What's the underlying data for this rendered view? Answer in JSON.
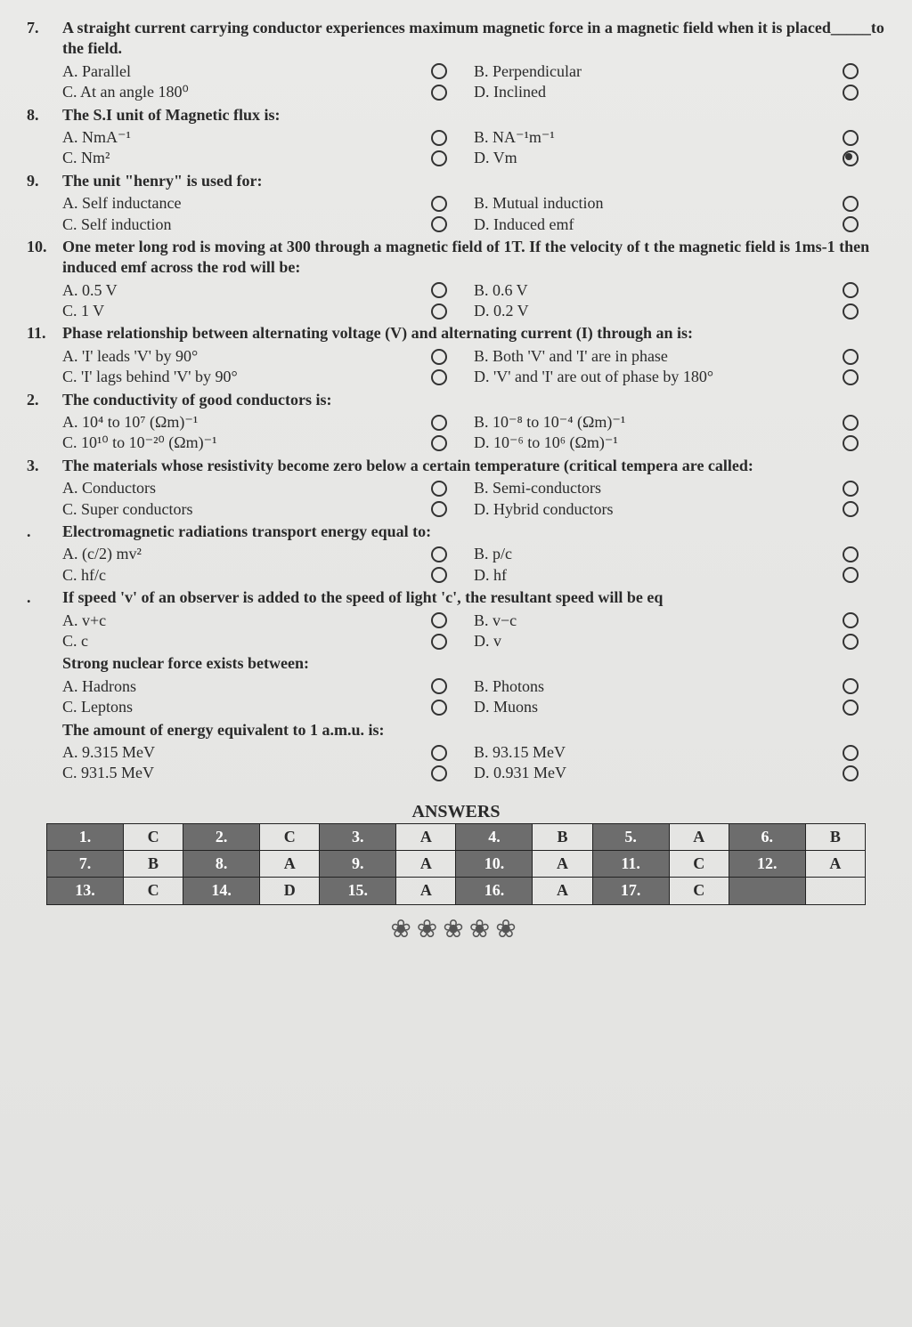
{
  "questions": [
    {
      "num": "7.",
      "stem": "A straight current carrying conductor experiences maximum magnetic force in a magnetic field when it is placed_____to the field.",
      "opts": [
        {
          "label": "A. Parallel",
          "filled": false
        },
        {
          "label": "B. Perpendicular",
          "filled": false
        },
        {
          "label": "C. At an angle 180⁰",
          "filled": false
        },
        {
          "label": "D. Inclined",
          "filled": false
        }
      ]
    },
    {
      "num": "8.",
      "stem": "The S.I unit of Magnetic flux is:",
      "opts": [
        {
          "label": "A. NmA⁻¹",
          "filled": false
        },
        {
          "label": "B. NA⁻¹m⁻¹",
          "filled": false
        },
        {
          "label": "C. Nm²",
          "filled": false
        },
        {
          "label": "D. Vm",
          "filled": true
        }
      ]
    },
    {
      "num": "9.",
      "stem": "The unit \"henry\" is used for:",
      "opts": [
        {
          "label": "A. Self inductance",
          "filled": false
        },
        {
          "label": "B. Mutual induction",
          "filled": false
        },
        {
          "label": "C. Self induction",
          "filled": false
        },
        {
          "label": "D. Induced emf",
          "filled": false
        }
      ]
    },
    {
      "num": "10.",
      "stem": "One meter long rod is moving at 300 through a magnetic field of 1T. If the velocity of t the magnetic field is 1ms-1 then induced emf across the rod will be:",
      "opts": [
        {
          "label": "A. 0.5 V",
          "filled": false
        },
        {
          "label": "B. 0.6 V",
          "filled": false
        },
        {
          "label": "C. 1 V",
          "filled": false
        },
        {
          "label": "D. 0.2 V",
          "filled": false
        }
      ]
    },
    {
      "num": "11.",
      "stem": "Phase relationship between alternating voltage (V) and alternating current (I) through an is:",
      "opts": [
        {
          "label": "A. 'I' leads 'V' by 90°",
          "filled": false
        },
        {
          "label": "B. Both 'V' and 'I' are in phase",
          "filled": false
        },
        {
          "label": "C. 'I' lags behind 'V' by 90°",
          "filled": false
        },
        {
          "label": "D. 'V' and 'I' are out of phase by 180°",
          "filled": false
        }
      ]
    },
    {
      "num": "2.",
      "stem": "The conductivity of good conductors is:",
      "opts": [
        {
          "label": "A. 10⁴ to 10⁷ (Ωm)⁻¹",
          "filled": false
        },
        {
          "label": "B. 10⁻⁸ to 10⁻⁴ (Ωm)⁻¹",
          "filled": false
        },
        {
          "label": "C. 10¹⁰ to 10⁻²⁰ (Ωm)⁻¹",
          "filled": false
        },
        {
          "label": "D. 10⁻⁶ to 10⁶ (Ωm)⁻¹",
          "filled": false
        }
      ]
    },
    {
      "num": "3.",
      "stem": "The materials whose resistivity become zero below a certain temperature (critical tempera are called:",
      "opts": [
        {
          "label": "A. Conductors",
          "filled": false
        },
        {
          "label": "B. Semi-conductors",
          "filled": false
        },
        {
          "label": "C. Super conductors",
          "filled": false
        },
        {
          "label": "D. Hybrid conductors",
          "filled": false
        }
      ]
    },
    {
      "num": ".",
      "stem": "Electromagnetic radiations transport energy equal to:",
      "opts": [
        {
          "label": "A. (c/2) mv²",
          "filled": false
        },
        {
          "label": "B. p/c",
          "filled": false
        },
        {
          "label": "C. hf/c",
          "filled": false
        },
        {
          "label": "D. hf",
          "filled": false
        }
      ]
    },
    {
      "num": ".",
      "stem": "If speed 'v' of an observer is added to the speed of light 'c', the resultant speed will be eq",
      "opts": [
        {
          "label": "A. v+c",
          "filled": false
        },
        {
          "label": "B. v−c",
          "filled": false
        },
        {
          "label": "C. c",
          "filled": false
        },
        {
          "label": "D. v",
          "filled": false
        }
      ]
    },
    {
      "num": "",
      "stem": "Strong nuclear force exists between:",
      "opts": [
        {
          "label": "A. Hadrons",
          "filled": false
        },
        {
          "label": "B. Photons",
          "filled": false
        },
        {
          "label": "C. Leptons",
          "filled": false
        },
        {
          "label": "D. Muons",
          "filled": false
        }
      ]
    },
    {
      "num": "",
      "stem": "The amount of energy equivalent to 1 a.m.u. is:",
      "opts": [
        {
          "label": "A. 9.315 MeV",
          "filled": false
        },
        {
          "label": "B. 93.15 MeV",
          "filled": false
        },
        {
          "label": "C. 931.5 MeV",
          "filled": false
        },
        {
          "label": "D. 0.931 MeV",
          "filled": false
        }
      ]
    }
  ],
  "answers_title": "ANSWERS",
  "answers": {
    "rows": [
      [
        {
          "n": "1.",
          "v": "C"
        },
        {
          "n": "2.",
          "v": "C"
        },
        {
          "n": "3.",
          "v": "A"
        },
        {
          "n": "4.",
          "v": "B"
        },
        {
          "n": "5.",
          "v": "A"
        },
        {
          "n": "6.",
          "v": "B"
        }
      ],
      [
        {
          "n": "7.",
          "v": "B"
        },
        {
          "n": "8.",
          "v": "A"
        },
        {
          "n": "9.",
          "v": "A"
        },
        {
          "n": "10.",
          "v": "A"
        },
        {
          "n": "11.",
          "v": "C"
        },
        {
          "n": "12.",
          "v": "A"
        }
      ],
      [
        {
          "n": "13.",
          "v": "C"
        },
        {
          "n": "14.",
          "v": "D"
        },
        {
          "n": "15.",
          "v": "A"
        },
        {
          "n": "16.",
          "v": "A"
        },
        {
          "n": "17.",
          "v": "C"
        },
        {
          "n": "",
          "v": ""
        }
      ]
    ]
  },
  "flowers": "❀❀❀❀❀"
}
